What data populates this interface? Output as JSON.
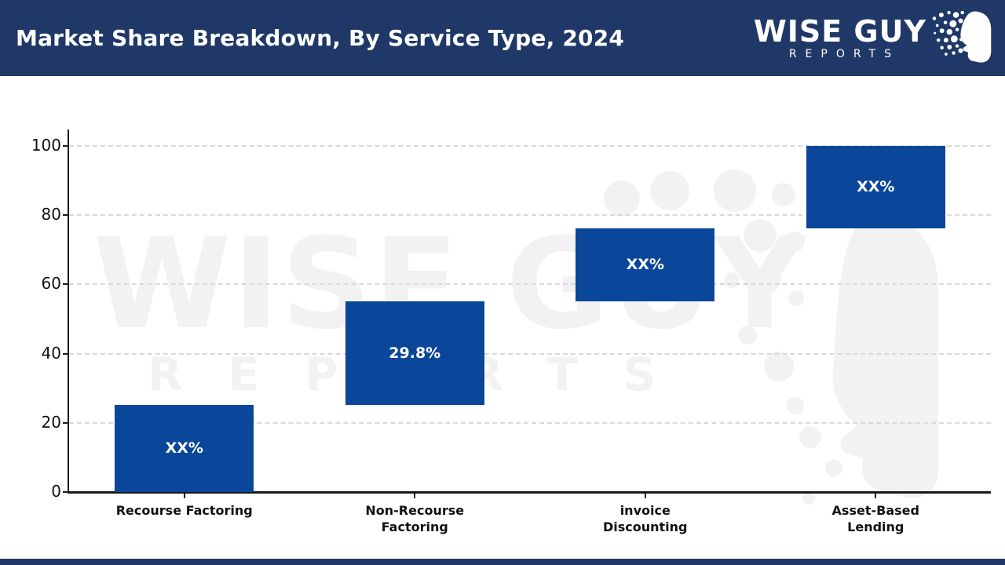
{
  "header": {
    "title": "Market Share Breakdown, By Service Type, 2024",
    "bg_color": "#1f3868",
    "text_color": "#ffffff",
    "logo": {
      "line1": "WISE GUY",
      "line2": "REPORTS"
    }
  },
  "watermark": {
    "line1": "WISE GUY",
    "line2": "REPORTS",
    "color": "#f2f2f2"
  },
  "footer": {
    "bg_color": "#1f3868"
  },
  "chart_data": {
    "type": "bar",
    "variant": "waterfall-percent-breakdown",
    "title": "Market Share Breakdown, By Service Type, 2024",
    "categories": [
      [
        "Recourse Factoring"
      ],
      [
        "Non-Recourse",
        "Factoring"
      ],
      [
        "invoice",
        "Discounting"
      ],
      [
        "Asset-Based",
        "Lending"
      ]
    ],
    "segments": [
      {
        "name": "Recourse Factoring",
        "start": 0,
        "end": 25.2,
        "label": "XX%"
      },
      {
        "name": "Non-Recourse Factoring",
        "start": 25.2,
        "end": 55.0,
        "label": "29.8%"
      },
      {
        "name": "invoice Discounting",
        "start": 55.0,
        "end": 76.3,
        "label": "XX%"
      },
      {
        "name": "Asset-Based Lending",
        "start": 76.3,
        "end": 100,
        "label": "XX%"
      }
    ],
    "ylim": [
      0,
      100
    ],
    "yticks": [
      0,
      20,
      40,
      60,
      80,
      100
    ],
    "grid": "horizontal-dashed",
    "grid_color": "#d9d9d9",
    "axis_color": "#1a1a1a",
    "bar_color": "#0a4699",
    "bar_label_color": "#ffffff",
    "tick_label_color": "#111111",
    "legend": "none"
  }
}
